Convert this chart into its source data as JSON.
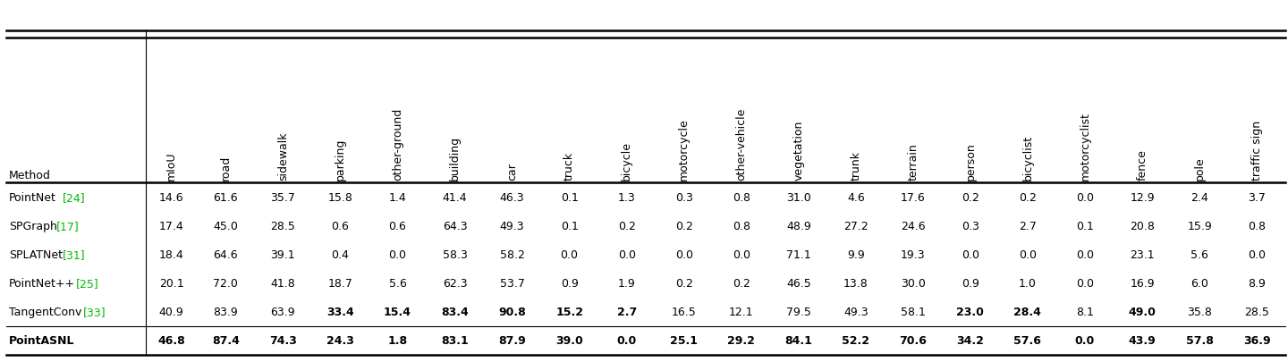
{
  "columns": [
    "Method",
    "mIoU",
    "road",
    "sidewalk",
    "parking",
    "other-ground",
    "building",
    "car",
    "truck",
    "bicycle",
    "motorcycle",
    "other-vehicle",
    "vegetation",
    "trunk",
    "terrain",
    "person",
    "bicyclist",
    "motorcyclist",
    "fence",
    "pole",
    "traffic sign"
  ],
  "rows": [
    {
      "method": "PointNet",
      "ref": "[24]",
      "values": [
        "14.6",
        "61.6",
        "35.7",
        "15.8",
        "1.4",
        "41.4",
        "46.3",
        "0.1",
        "1.3",
        "0.3",
        "0.8",
        "31.0",
        "4.6",
        "17.6",
        "0.2",
        "0.2",
        "0.0",
        "12.9",
        "2.4",
        "3.7"
      ]
    },
    {
      "method": "SPGraph",
      "ref": "[17]",
      "values": [
        "17.4",
        "45.0",
        "28.5",
        "0.6",
        "0.6",
        "64.3",
        "49.3",
        "0.1",
        "0.2",
        "0.2",
        "0.8",
        "48.9",
        "27.2",
        "24.6",
        "0.3",
        "2.7",
        "0.1",
        "20.8",
        "15.9",
        "0.8"
      ]
    },
    {
      "method": "SPLATNet",
      "ref": "[31]",
      "values": [
        "18.4",
        "64.6",
        "39.1",
        "0.4",
        "0.0",
        "58.3",
        "58.2",
        "0.0",
        "0.0",
        "0.0",
        "0.0",
        "71.1",
        "9.9",
        "19.3",
        "0.0",
        "0.0",
        "0.0",
        "23.1",
        "5.6",
        "0.0"
      ]
    },
    {
      "method": "PointNet++",
      "ref": "[25]",
      "values": [
        "20.1",
        "72.0",
        "41.8",
        "18.7",
        "5.6",
        "62.3",
        "53.7",
        "0.9",
        "1.9",
        "0.2",
        "0.2",
        "46.5",
        "13.8",
        "30.0",
        "0.9",
        "1.0",
        "0.0",
        "16.9",
        "6.0",
        "8.9"
      ]
    },
    {
      "method": "TangentConv",
      "ref": "[33]",
      "values": [
        "40.9",
        "83.9",
        "63.9",
        "33.4",
        "15.4",
        "83.4",
        "90.8",
        "15.2",
        "2.7",
        "16.5",
        "12.1",
        "79.5",
        "49.3",
        "58.1",
        "23.0",
        "28.4",
        "8.1",
        "49.0",
        "35.8",
        "28.5"
      ],
      "bold_indices": [
        3,
        4,
        5,
        6,
        7,
        8,
        14,
        15,
        17
      ]
    },
    {
      "method": "PointASNL",
      "ref": "",
      "values": [
        "46.8",
        "87.4",
        "74.3",
        "24.3",
        "1.8",
        "83.1",
        "87.9",
        "39.0",
        "0.0",
        "25.1",
        "29.2",
        "84.1",
        "52.2",
        "70.6",
        "34.2",
        "57.6",
        "0.0",
        "43.9",
        "57.8",
        "36.9"
      ],
      "bold_indices": [
        0,
        1,
        2,
        7,
        9,
        10,
        11,
        12,
        13,
        14,
        16,
        17,
        18,
        19
      ]
    }
  ],
  "green_color": "#00bb00",
  "fontsize": 9.0,
  "header_fontsize": 9.0
}
